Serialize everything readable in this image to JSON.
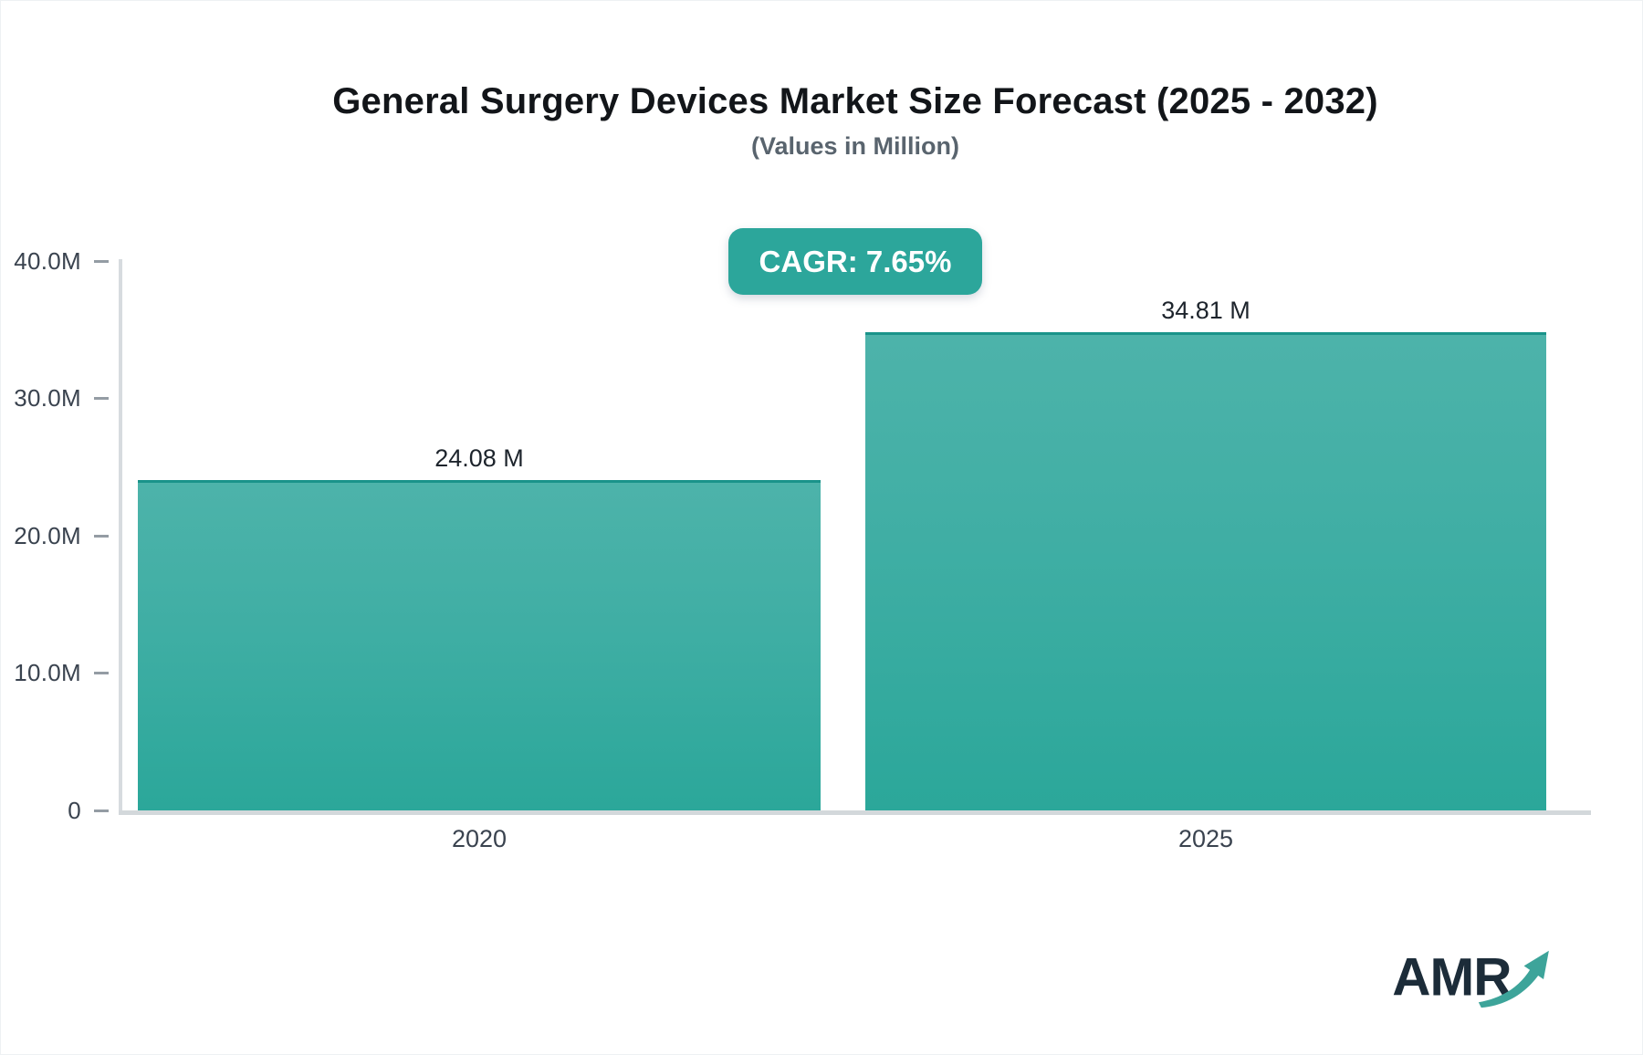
{
  "header": {
    "title": "General Surgery Devices Market Size Forecast (2025 - 2032)",
    "subtitle": "(Values in Million)"
  },
  "badge": {
    "label": "CAGR: 7.65%"
  },
  "logo": {
    "text": "AMR"
  },
  "colors": {
    "accent_teal": "#2CA69B",
    "bar_gradient_top": "#4DB3AA",
    "bar_gradient_bottom": "#2BA79A",
    "bar_top_border": "#1A938A",
    "logo_navy": "#1C2C39",
    "axis_line": "#D7DBDF",
    "text_dark": "#121519",
    "text_gray": "#59646E"
  },
  "chart_data": {
    "type": "bar",
    "title": "General Surgery Devices Market Size Forecast (2025 - 2032)",
    "subtitle": "(Values in Million)",
    "annotation": "CAGR: 7.65%",
    "categories": [
      "2020",
      "2025"
    ],
    "values": [
      24.08,
      34.81
    ],
    "value_labels": [
      "24.08 M",
      "34.81 M"
    ],
    "xlabel": "",
    "ylabel": "",
    "ylim": [
      0,
      40
    ],
    "ytick_values": [
      0,
      10,
      20,
      30,
      40
    ],
    "ytick_labels": [
      "0",
      "10.0M",
      "20.0M",
      "30.0M",
      "40.0M"
    ],
    "grid": false,
    "legend": false
  }
}
